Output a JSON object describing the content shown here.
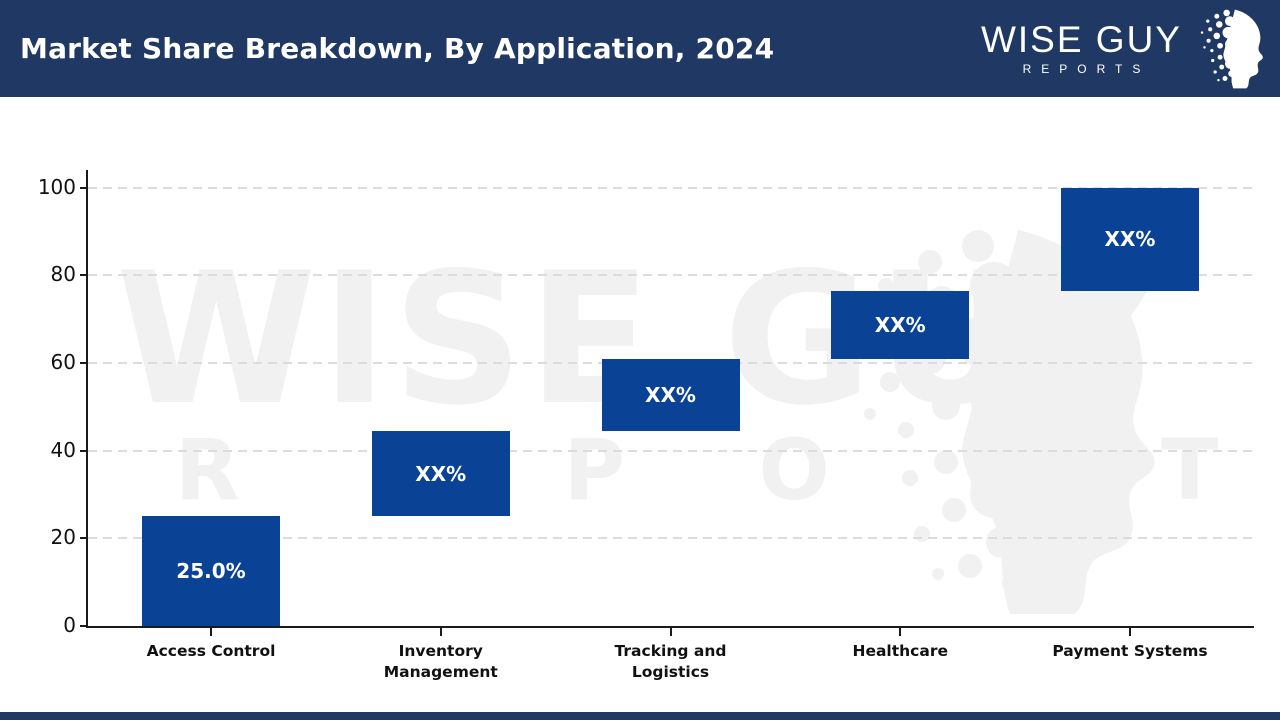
{
  "header": {
    "title": "Market Share Breakdown, By Application, 2024",
    "logo": {
      "line1": "WISE GUY",
      "line2": "REPORTS"
    }
  },
  "watermark": {
    "line1": "WISE GUY",
    "line2": "REPORTS"
  },
  "colors": {
    "header_bg": "#203864",
    "footer_bg": "#203864",
    "bar": "#0a4296",
    "axis": "#1a1a1a",
    "grid": "#dcdcdc",
    "watermark": "#f1f1f1",
    "bar_label": "#ffffff"
  },
  "chart_data": {
    "type": "bar",
    "subtype": "waterfall",
    "title": "Market Share Breakdown, By Application, 2024",
    "xlabel": "",
    "ylabel": "",
    "categories": [
      "Access Control",
      "Inventory Management",
      "Tracking and Logistics",
      "Healthcare",
      "Payment Systems"
    ],
    "category_display": [
      "Access Control",
      "Inventory\nManagement",
      "Tracking and\nLogistics",
      "Healthcare",
      "Payment Systems"
    ],
    "series": [
      {
        "name": "Market Share (%)",
        "segments": [
          {
            "start": 0,
            "end": 25
          },
          {
            "start": 25,
            "end": 44.5
          },
          {
            "start": 44.5,
            "end": 61
          },
          {
            "start": 61,
            "end": 76.5
          },
          {
            "start": 76.5,
            "end": 100
          }
        ]
      }
    ],
    "bar_labels": [
      "25.0%",
      "XX%",
      "XX%",
      "XX%",
      "XX%"
    ],
    "y_ticks": [
      0,
      20,
      40,
      60,
      80,
      100
    ],
    "ylim": [
      0,
      104
    ],
    "grid": "horizontal-dashed",
    "legend": "none"
  }
}
